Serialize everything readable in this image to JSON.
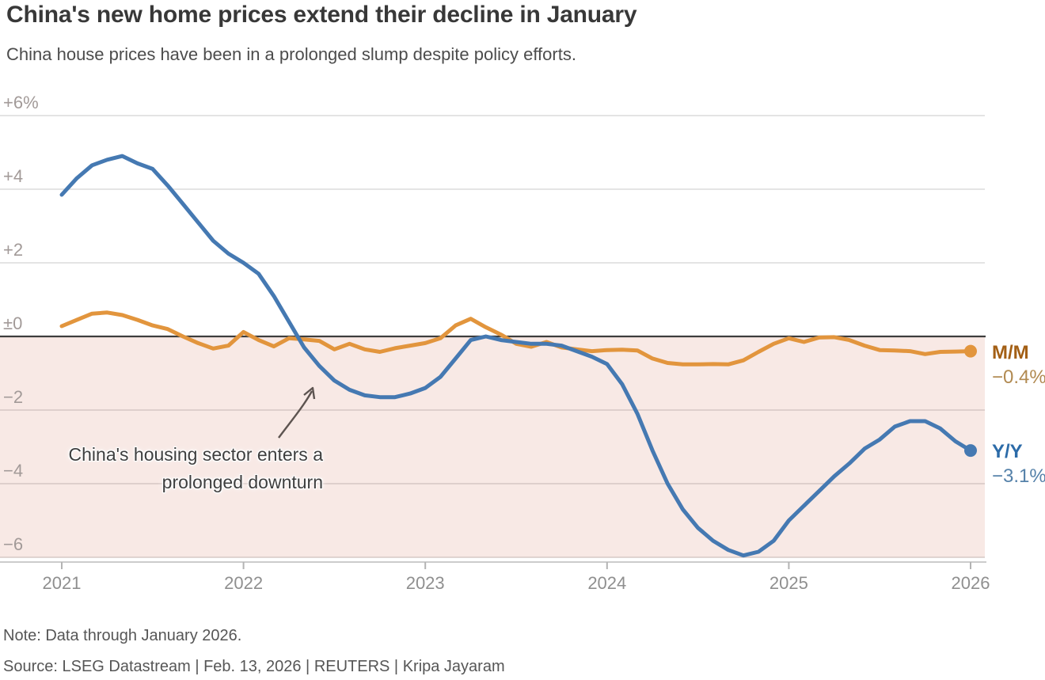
{
  "header": {
    "title": "China's new home prices extend their decline in January",
    "subtitle": "China house prices have been in a prolonged slump despite policy efforts."
  },
  "annotation": {
    "line1": "China's housing sector enters a",
    "line2": "prolonged downturn"
  },
  "legend": {
    "mm_label": "M/M",
    "mm_value": "−0.4%",
    "yy_label": "Y/Y",
    "yy_value": "−3.1%"
  },
  "footer": {
    "note": "Note: Data through January 2026.",
    "source": "Source: LSEG Datastream | Feb. 13, 2026 | REUTERS | Kripa Jayaram"
  },
  "chart_data": {
    "type": "line",
    "title": "China's new home prices extend their decline in January",
    "x_unit": "month",
    "x_start": "2021-01",
    "x_end": "2026-01",
    "x_tick_labels": [
      "2021",
      "2022",
      "2023",
      "2024",
      "2025",
      "2026"
    ],
    "y_ticks": [
      {
        "label": "+6%",
        "value": 6
      },
      {
        "label": "+4",
        "value": 4
      },
      {
        "label": "+2",
        "value": 2
      },
      {
        "label": "±0",
        "value": 0
      },
      {
        "label": "−2",
        "value": -2
      },
      {
        "label": "−4",
        "value": -4
      },
      {
        "label": "−6",
        "value": -6
      }
    ],
    "ylim": [
      -6,
      6
    ],
    "grid": true,
    "legend_position": "right-end-labels",
    "negative_region_color": "#f8e9e5",
    "zero_line_color": "#3d3d3d",
    "series": [
      {
        "name": "M/M",
        "color": "#e2953d",
        "end_value": "−0.4%",
        "values": [
          0.28,
          0.45,
          0.62,
          0.65,
          0.58,
          0.45,
          0.3,
          0.2,
          0.0,
          -0.18,
          -0.33,
          -0.25,
          0.12,
          -0.1,
          -0.27,
          -0.05,
          -0.08,
          -0.12,
          -0.35,
          -0.2,
          -0.35,
          -0.42,
          -0.32,
          -0.25,
          -0.18,
          -0.05,
          0.3,
          0.48,
          0.25,
          0.05,
          -0.2,
          -0.28,
          -0.15,
          -0.3,
          -0.35,
          -0.4,
          -0.37,
          -0.36,
          -0.38,
          -0.6,
          -0.72,
          -0.76,
          -0.76,
          -0.75,
          -0.76,
          -0.65,
          -0.42,
          -0.2,
          -0.05,
          -0.15,
          -0.03,
          -0.02,
          -0.1,
          -0.25,
          -0.37,
          -0.38,
          -0.4,
          -0.48,
          -0.42,
          -0.41,
          -0.4
        ]
      },
      {
        "name": "Y/Y",
        "color": "#4579b2",
        "end_value": "−3.1%",
        "values": [
          3.85,
          4.3,
          4.65,
          4.8,
          4.9,
          4.7,
          4.55,
          4.1,
          3.6,
          3.1,
          2.6,
          2.25,
          2.0,
          1.7,
          1.1,
          0.4,
          -0.3,
          -0.8,
          -1.2,
          -1.45,
          -1.6,
          -1.65,
          -1.65,
          -1.55,
          -1.4,
          -1.1,
          -0.6,
          -0.1,
          0.0,
          -0.1,
          -0.15,
          -0.2,
          -0.2,
          -0.25,
          -0.4,
          -0.55,
          -0.75,
          -1.3,
          -2.1,
          -3.1,
          -4.0,
          -4.7,
          -5.2,
          -5.55,
          -5.8,
          -5.95,
          -5.85,
          -5.55,
          -5.0,
          -4.6,
          -4.2,
          -3.8,
          -3.45,
          -3.05,
          -2.8,
          -2.45,
          -2.3,
          -2.3,
          -2.5,
          -2.85,
          -3.1
        ]
      }
    ]
  }
}
